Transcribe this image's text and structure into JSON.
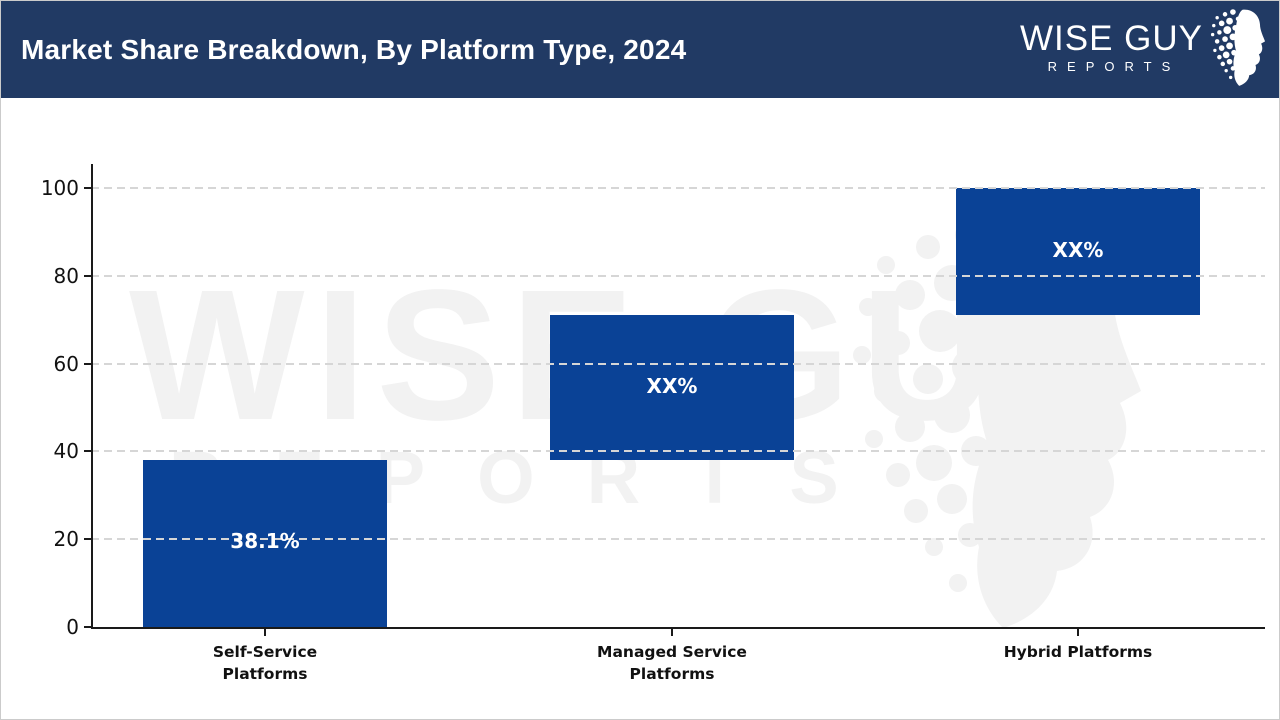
{
  "header": {
    "title": "Market Share Breakdown, By Platform Type, 2024",
    "bg_color": "#213a64",
    "logo": {
      "line1": "WISE GUY",
      "line2": "REPORTS",
      "icon": "wiseguy-face-icon"
    }
  },
  "watermark": {
    "line1": "WISE GUY",
    "line2": "REPORTS",
    "icon": "wiseguy-face-icon"
  },
  "chart_data": {
    "type": "bar",
    "subtype": "floating-waterfall",
    "title": "Market Share Breakdown, By Platform Type, 2024",
    "categories": [
      {
        "name": "Self-Service Platforms",
        "lines": [
          "Self-Service",
          "Platforms"
        ]
      },
      {
        "name": "Managed Service Platforms",
        "lines": [
          "Managed Service",
          "Platforms"
        ]
      },
      {
        "name": "Hybrid Platforms",
        "lines": [
          "Hybrid Platforms"
        ]
      }
    ],
    "segments": [
      {
        "category": "Self-Service Platforms",
        "start": 0,
        "end": 38.1,
        "label": "38.1%"
      },
      {
        "category": "Managed Service Platforms",
        "start": 38.1,
        "end": 71,
        "label": "XX%"
      },
      {
        "category": "Hybrid Platforms",
        "start": 71,
        "end": 100,
        "label": "XX%"
      }
    ],
    "yticks": [
      0,
      20,
      40,
      60,
      80,
      100
    ],
    "ylim": [
      0,
      105
    ],
    "xlabel": "",
    "ylabel": "",
    "grid": "horizontal-dashed",
    "legend": "none",
    "bar_color": "#0a4296",
    "bar_label_color": "#ffffff",
    "axis_color": "#1a1a1a",
    "gridline_color": "#d6d6d6",
    "header_bg": "#213a64",
    "watermark_color": "#f2f2f2"
  }
}
